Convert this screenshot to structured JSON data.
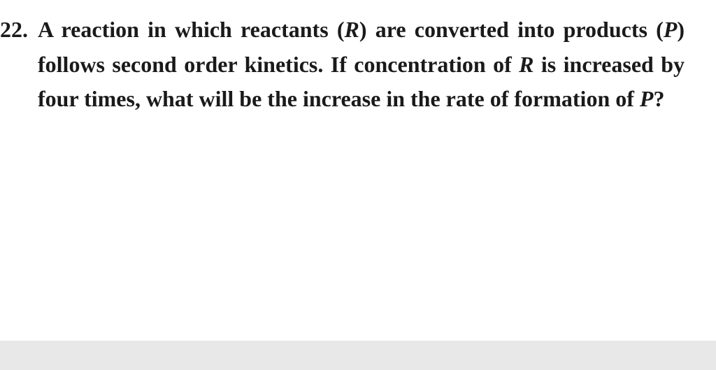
{
  "question": {
    "number": "22.",
    "line1_part1": "A reaction in which reactants (",
    "line1_R": "R",
    "line1_part2": ") are converted",
    "line2_part1": "into products (",
    "line2_P": "P",
    "line2_part2": ") follows second order kinetics. If",
    "line3_part1": "concentration of ",
    "line3_R": "R",
    "line3_part2": " is increased by four times, what",
    "line4_part1": "will be the increase in the rate of formation of ",
    "line4_P": "P",
    "line4_part2": "?"
  },
  "styling": {
    "background_color": "#ffffff",
    "text_color": "#1a1a1a",
    "font_family": "Georgia, 'Times New Roman', serif",
    "font_size_pt": 32,
    "font_weight": "bold",
    "line_height": 1.55,
    "bottom_band_color": "#e8e8e8",
    "bottom_band_height": 42,
    "container_width": 1024,
    "container_height": 529
  }
}
